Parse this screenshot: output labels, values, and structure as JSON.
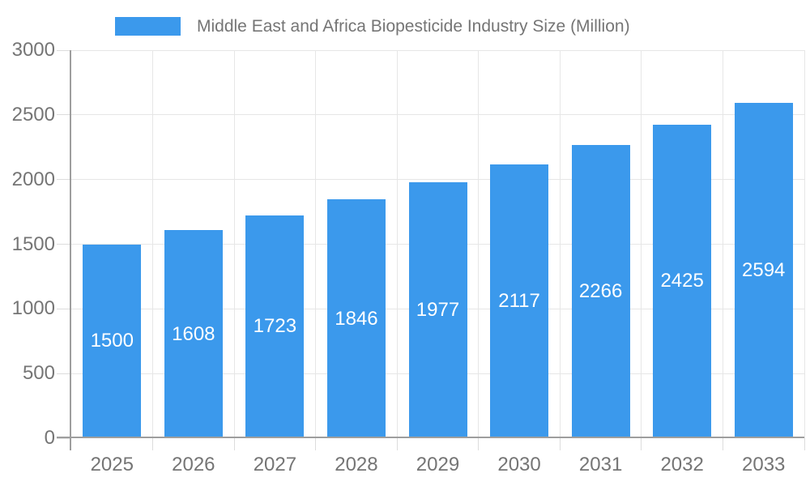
{
  "chart_data": {
    "type": "bar",
    "title": "Middle East and Africa Biopesticide Industry Size (Million)",
    "legend": {
      "label": "Middle East and Africa Biopesticide Industry Size (Million)",
      "position": "top"
    },
    "categories": [
      "2025",
      "2026",
      "2027",
      "2028",
      "2029",
      "2030",
      "2031",
      "2032",
      "2033"
    ],
    "series": [
      {
        "name": "Middle East and Africa Biopesticide Industry Size (Million)",
        "values": [
          1500,
          1608,
          1723,
          1846,
          1977,
          2117,
          2266,
          2425,
          2594
        ]
      }
    ],
    "xlabel": "",
    "ylabel": "",
    "ylim": [
      0,
      3000
    ],
    "yticks": [
      0,
      500,
      1000,
      1500,
      2000,
      2500,
      3000
    ],
    "grid": true,
    "bar_value_labels_position": "inside-center",
    "colors": {
      "bar": "#3B99EC",
      "bar_label": "#FFFFFF",
      "axis_text": "#757575",
      "grid_line": "#E6E6E6",
      "tick_line": "#DCDCDC",
      "axis_line": "#9E9E9E",
      "background": "#FFFFFF"
    }
  }
}
